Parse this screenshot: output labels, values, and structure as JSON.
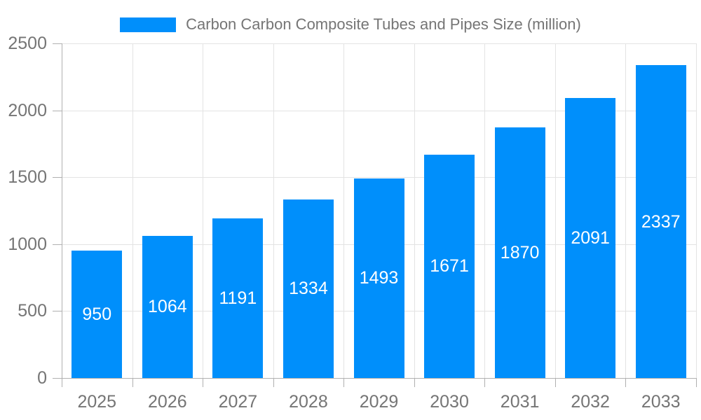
{
  "legend": {
    "label": "Carbon Carbon Composite Tubes and Pipes Size (million)"
  },
  "colors": {
    "bar": "#008FFB",
    "grid": "#e3e3e3",
    "axis": "#b0b0b0",
    "tick_text": "#757575",
    "value_label": "#ffffff",
    "background": "#ffffff"
  },
  "chart_data": {
    "type": "bar",
    "title": "Carbon Carbon Composite Tubes and Pipes Size (million)",
    "categories": [
      "2025",
      "2026",
      "2027",
      "2028",
      "2029",
      "2030",
      "2031",
      "2032",
      "2033"
    ],
    "values": [
      950,
      1064,
      1191,
      1334,
      1493,
      1671,
      1870,
      2091,
      2337
    ],
    "value_labels": [
      "950",
      "1064",
      "1191",
      "1334",
      "1493",
      "1671",
      "1870",
      "2091",
      "2337"
    ],
    "xlabel": "",
    "ylabel": "",
    "ylim": [
      0,
      2500
    ],
    "yticks": [
      0,
      500,
      1000,
      1500,
      2000,
      2500
    ],
    "ytick_labels": [
      "0",
      "500",
      "1000",
      "1500",
      "2000",
      "2500"
    ],
    "grid": "both",
    "legend_position": "top",
    "value_label_position": "inside-center"
  }
}
